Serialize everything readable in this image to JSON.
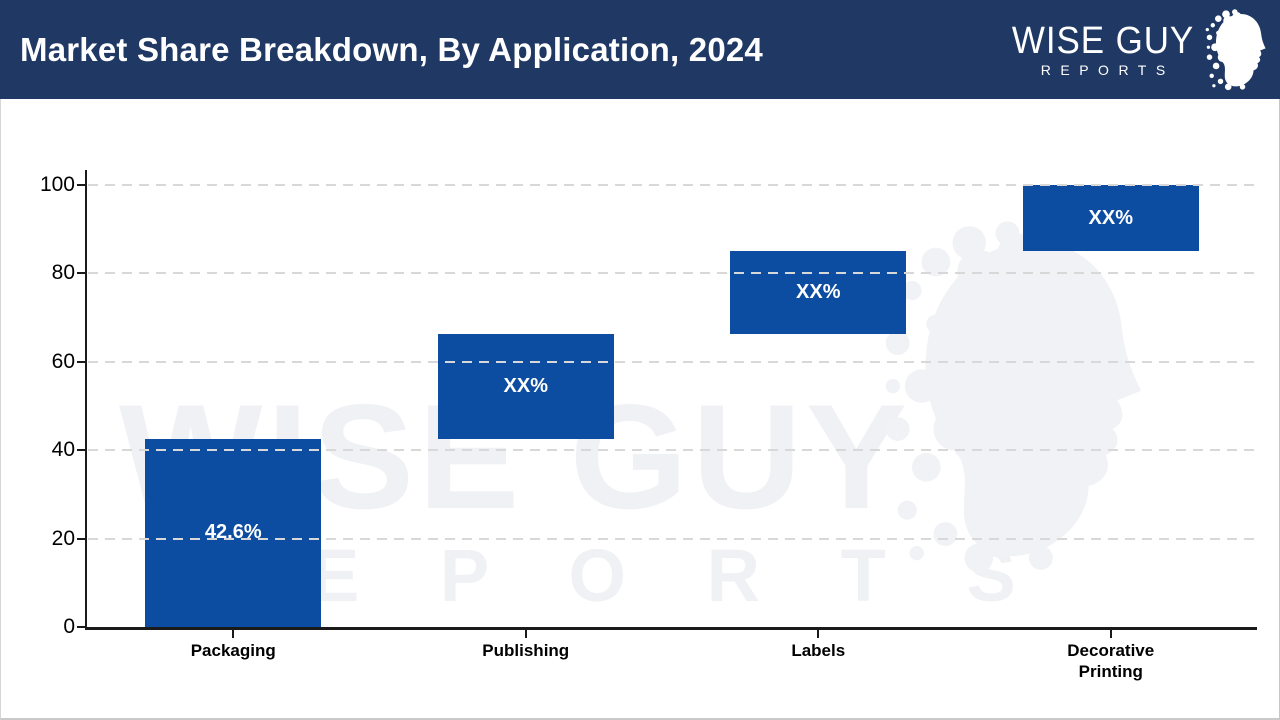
{
  "header": {
    "title": "Market Share Breakdown, By Application, 2024",
    "logo": {
      "line1": "WISE GUY",
      "line2": "REPORTS",
      "face_icon": "dotted-head-profile"
    }
  },
  "watermark": {
    "line1": "WISE GUY",
    "line2": "R E P O R T S",
    "face_icon": "dotted-head-profile"
  },
  "chart_data": {
    "type": "bar",
    "subtype": "floating-waterfall",
    "title": "Market Share Breakdown, By Application, 2024",
    "categories": [
      "Packaging",
      "Publishing",
      "Labels",
      "Decorative Printing"
    ],
    "segments": [
      {
        "category": "Packaging",
        "start": 0,
        "end": 42.6,
        "label": "42.6%"
      },
      {
        "category": "Publishing",
        "start": 42.6,
        "end": 66.3,
        "label": "XX%"
      },
      {
        "category": "Labels",
        "start": 66.3,
        "end": 85.0,
        "label": "XX%"
      },
      {
        "category": "Decorative Printing",
        "start": 85.0,
        "end": 100,
        "label": "XX%"
      }
    ],
    "xlabel": "",
    "ylabel": "",
    "ylim": [
      0,
      100
    ],
    "yticks": [
      0,
      20,
      40,
      60,
      80,
      100
    ],
    "grid": "horizontal-dashed",
    "legend": "none",
    "bar_color": "#0c4da2",
    "bar_label_color": "#ffffff",
    "grid_color": "#d8d8d8",
    "axis_color": "#1a1a1a",
    "header_color": "#1f3864"
  }
}
